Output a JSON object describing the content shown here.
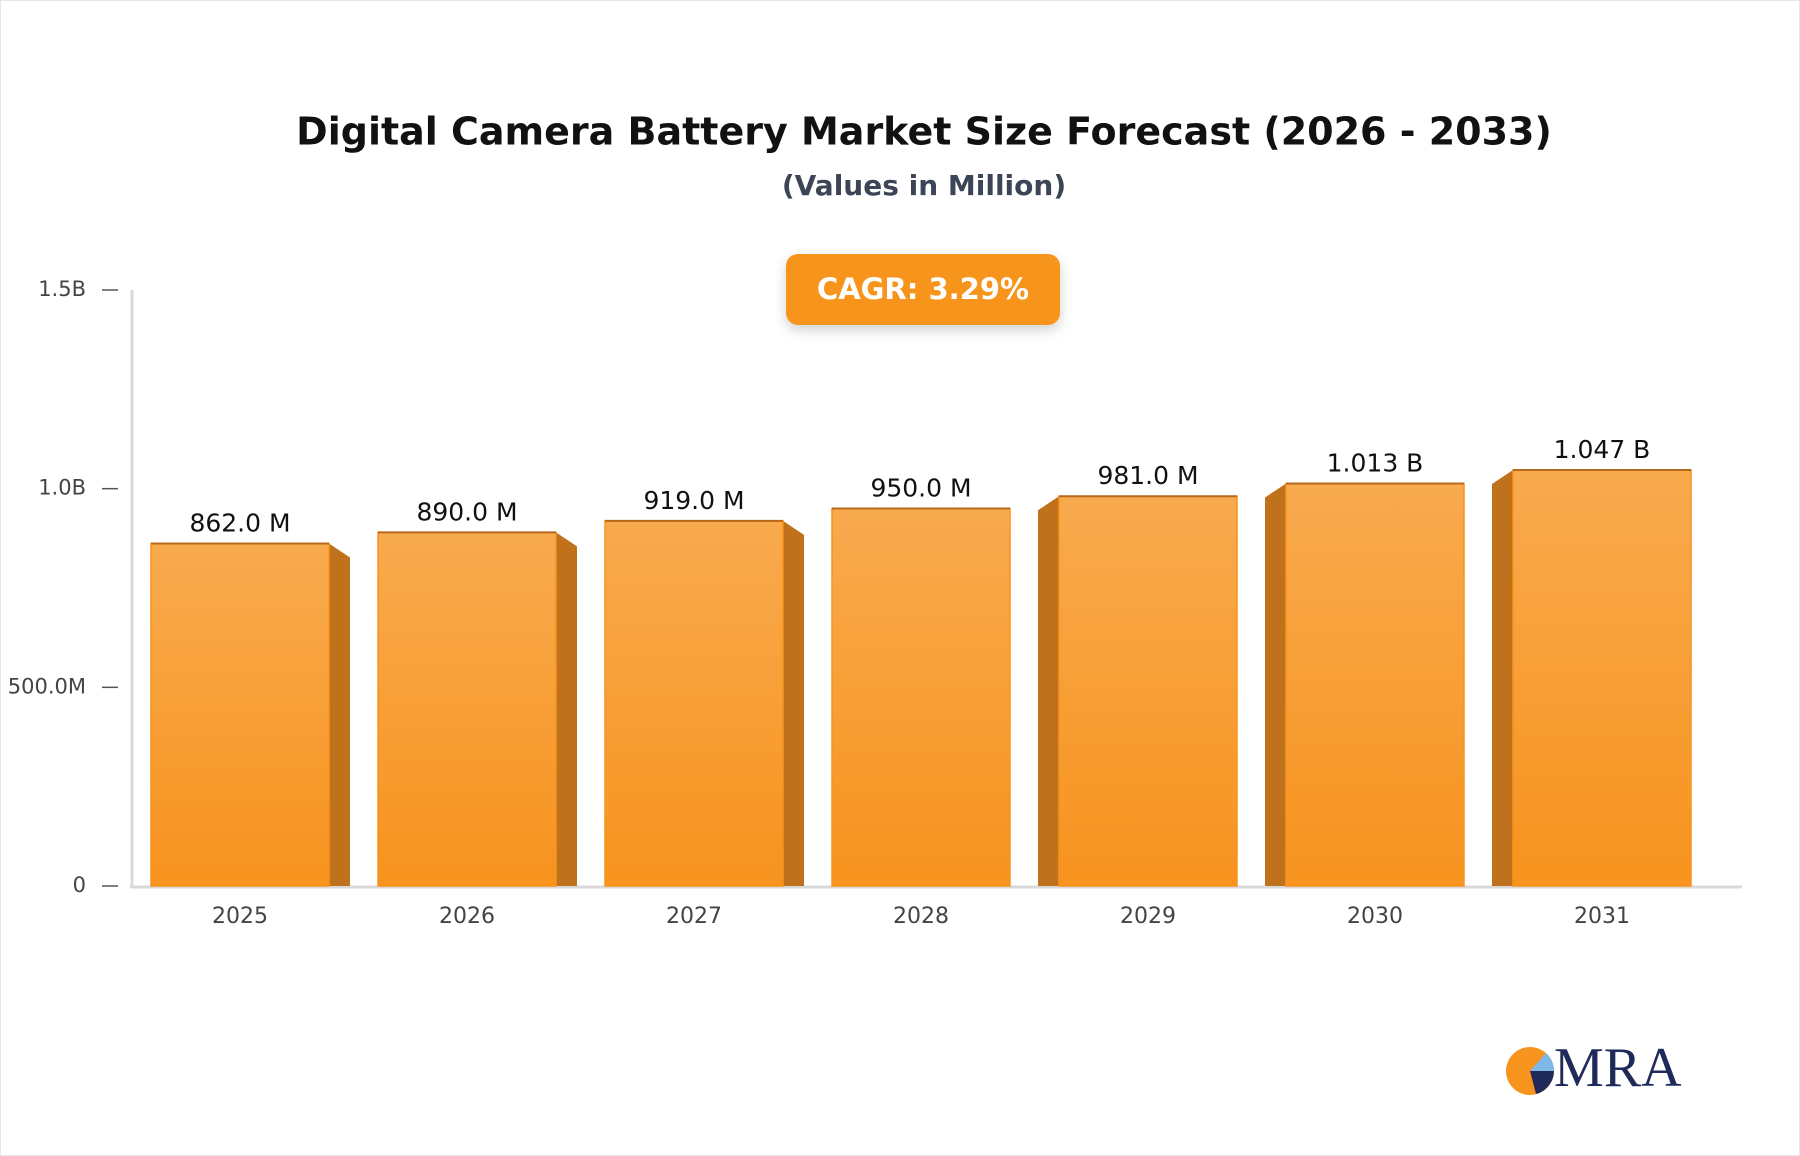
{
  "chart_data": {
    "type": "bar",
    "title": "Digital Camera Battery Market Size Forecast (2026 - 2033)",
    "subtitle": "(Values in Million)",
    "annotation": "CAGR: 3.29%",
    "categories": [
      "2025",
      "2026",
      "2027",
      "2028",
      "2029",
      "2030",
      "2031"
    ],
    "values": [
      862,
      890,
      919,
      950,
      981,
      1013,
      1047
    ],
    "value_labels": [
      "862.0 M",
      "890.0 M",
      "919.0 M",
      "950.0 M",
      "981.0 M",
      "1.013 B",
      "1.047 B"
    ],
    "color": "#f7941d",
    "ylim": [
      0,
      1500
    ],
    "yticks": [
      0,
      {
        "value": 500,
        "label": "500.0M"
      },
      {
        "value": 1000,
        "label": "1.0B"
      },
      {
        "value": 1500,
        "label": "1.5B"
      }
    ],
    "grid": false
  },
  "logo": "MRA"
}
